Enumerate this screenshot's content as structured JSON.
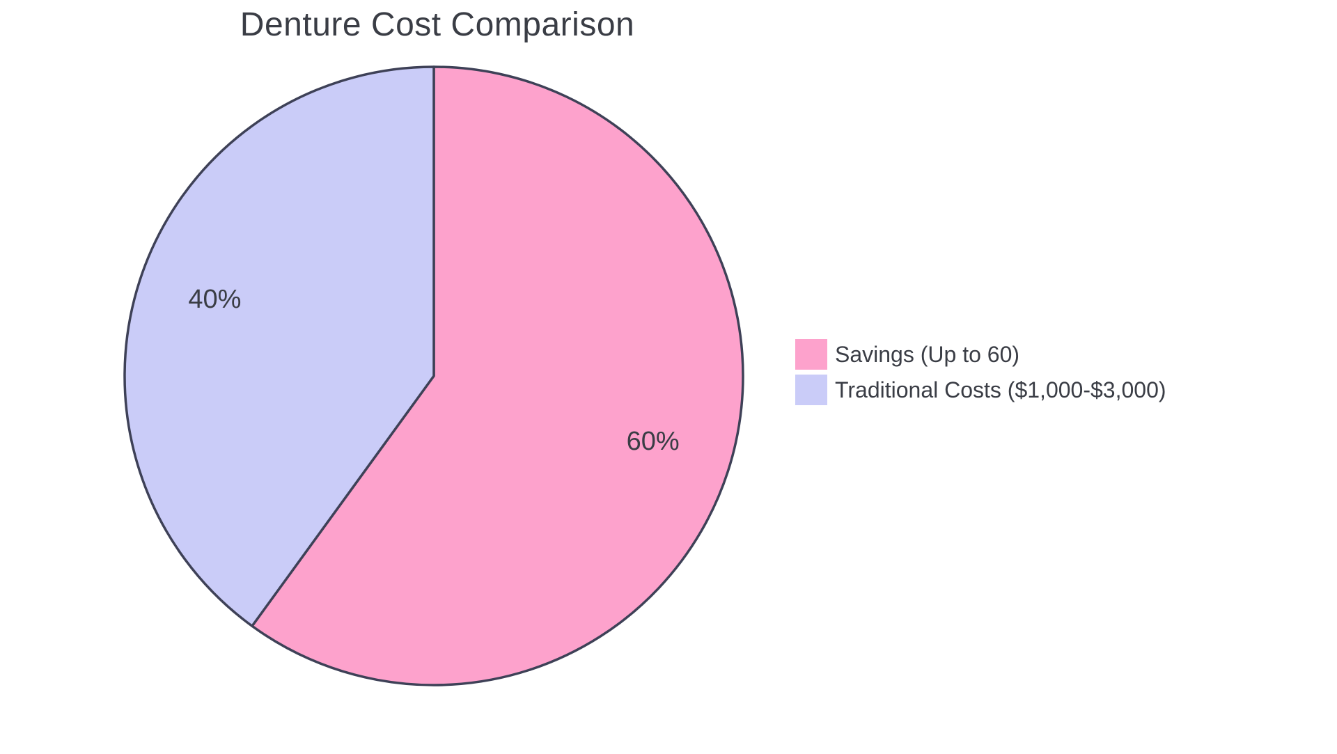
{
  "chart_data": {
    "type": "pie",
    "title": "Denture Cost Comparison",
    "categories": [
      "Savings (Up to 60)",
      "Traditional Costs ($1,000-$3,000)"
    ],
    "values": [
      60,
      40
    ],
    "slice_labels": [
      "60%",
      "40%"
    ],
    "colors": [
      "#FDA2CC",
      "#CACCF8"
    ],
    "stroke_color": "#3E4157",
    "title_color": "#3A3D45",
    "label_color": "#3A3D45",
    "background": "#FFFFFF",
    "start_angle": "top",
    "direction": "clockwise",
    "legend_position": "right",
    "grid": "off"
  }
}
